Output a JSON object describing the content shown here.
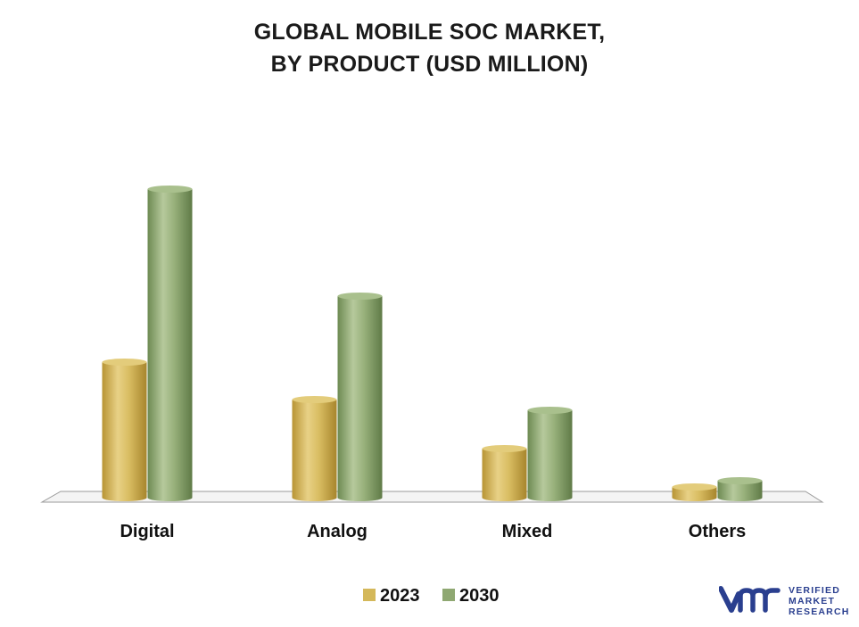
{
  "chart_data": {
    "type": "bar",
    "title": [
      "GLOBAL MOBILE SOC MARKET,",
      "BY PRODUCT (USD MILLION)"
    ],
    "categories": [
      "Digital",
      "Analog",
      "Mixed",
      "Others"
    ],
    "series": [
      {
        "name": "2023",
        "values": [
          152,
          110,
          55,
          12
        ],
        "color": "#d4b85a"
      },
      {
        "name": "2030",
        "values": [
          346,
          226,
          98,
          19
        ],
        "color": "#8fa872"
      }
    ],
    "ylim": [
      0,
      360
    ],
    "grid": false,
    "legend": "bottom-center"
  },
  "logo": {
    "lines": [
      "VERIFIED",
      "MARKET",
      "RESEARCH"
    ],
    "mark": "VMR",
    "color": "#2a3f8f"
  }
}
